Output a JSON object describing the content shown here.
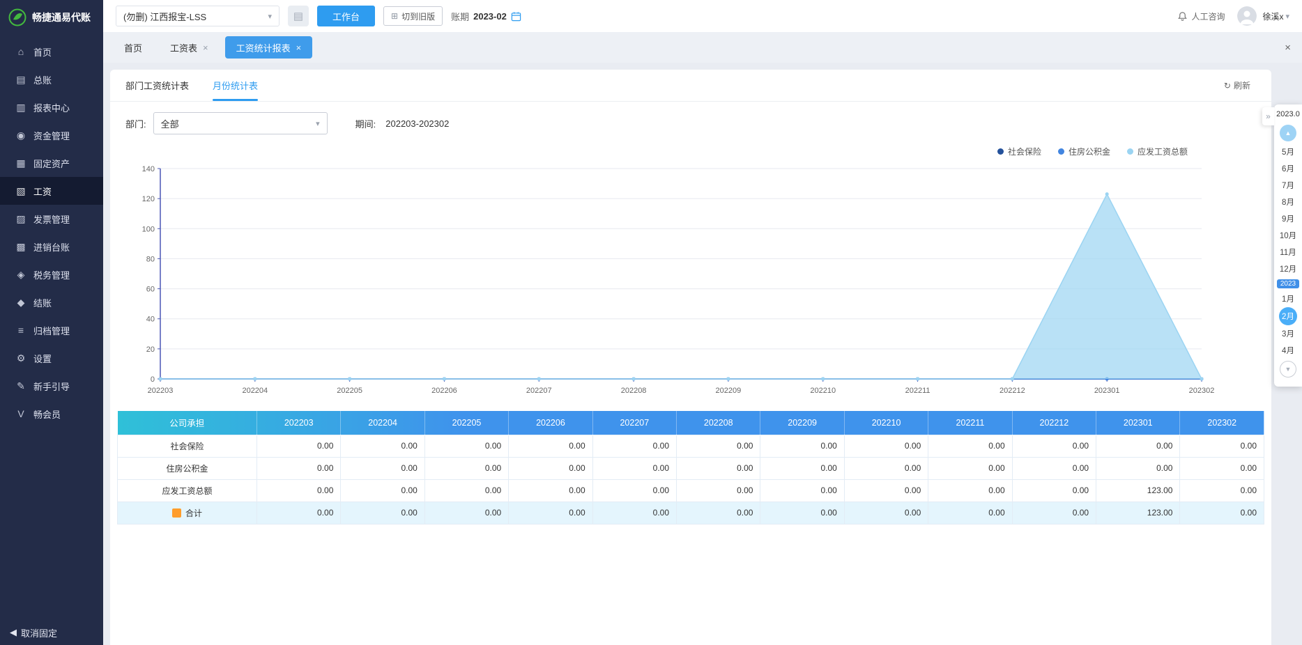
{
  "ui": {
    "chevron_down": "▾",
    "refresh_icon": "↻",
    "close_icon": "×"
  },
  "sidebar": {
    "logo": "畅捷通易代账",
    "pin_icon": "◀",
    "pin_label": "取消固定",
    "items": [
      {
        "id": "home",
        "label": "首页",
        "icon": "⌂",
        "active": false
      },
      {
        "id": "general-ledger",
        "label": "总账",
        "icon": "▤",
        "active": false
      },
      {
        "id": "report-center",
        "label": "报表中心",
        "icon": "▥",
        "active": false
      },
      {
        "id": "fund-management",
        "label": "资金管理",
        "icon": "◉",
        "active": false
      },
      {
        "id": "fixed-assets",
        "label": "固定资产",
        "icon": "▦",
        "active": false
      },
      {
        "id": "salary",
        "label": "工资",
        "icon": "▧",
        "active": true
      },
      {
        "id": "invoice-management",
        "label": "发票管理",
        "icon": "▨",
        "active": false
      },
      {
        "id": "purchase-sale-ledger",
        "label": "进销台账",
        "icon": "▩",
        "active": false
      },
      {
        "id": "tax-management",
        "label": "税务管理",
        "icon": "◈",
        "active": false
      },
      {
        "id": "closing",
        "label": "结账",
        "icon": "◆",
        "active": false
      },
      {
        "id": "archive-management",
        "label": "归档管理",
        "icon": "≡",
        "active": false
      },
      {
        "id": "settings",
        "label": "设置",
        "icon": "⚙",
        "active": false
      },
      {
        "id": "beginner-guide",
        "label": "新手引导",
        "icon": "✎",
        "active": false
      },
      {
        "id": "member",
        "label": "畅会员",
        "icon": "V",
        "active": false
      }
    ]
  },
  "topbar": {
    "company_select": "(勿删) 江西报宝-LSS",
    "memo_icon": "▤",
    "workbench_button": "工作台",
    "switch_old_icon": "⊞",
    "switch_old_button": "切到旧版",
    "period_label": "账期",
    "period_value": "2023-02",
    "consult_label": "人工咨询",
    "username": "徐溪x"
  },
  "tabbar": {
    "close_all": "×",
    "tabs": [
      {
        "id": "home",
        "label": "首页",
        "closable": false,
        "active": false
      },
      {
        "id": "salary-sheet",
        "label": "工资表",
        "closable": true,
        "active": false
      },
      {
        "id": "salary-stats-report",
        "label": "工资统计报表",
        "closable": true,
        "active": true
      }
    ]
  },
  "page": {
    "subtabs": [
      {
        "id": "dept-salary-stats",
        "label": "部门工资统计表",
        "active": false
      },
      {
        "id": "monthly-stats",
        "label": "月份统计表",
        "active": true
      }
    ],
    "refresh_label": "刷新",
    "filters": {
      "dept_label": "部门:",
      "dept_value": "全部",
      "period_label": "期间:",
      "period_value": "202203-202302"
    }
  },
  "chart_data": {
    "type": "area",
    "categories": [
      "202203",
      "202204",
      "202205",
      "202206",
      "202207",
      "202208",
      "202209",
      "202210",
      "202211",
      "202212",
      "202301",
      "202302"
    ],
    "series": [
      {
        "name": "社会保险",
        "color": "#24519b",
        "values": [
          0,
          0,
          0,
          0,
          0,
          0,
          0,
          0,
          0,
          0,
          0,
          0
        ]
      },
      {
        "name": "住房公积金",
        "color": "#4285e0",
        "values": [
          0,
          0,
          0,
          0,
          0,
          0,
          0,
          0,
          0,
          0,
          0,
          0
        ]
      },
      {
        "name": "应发工资总额",
        "color": "#9bd4f2",
        "values": [
          0,
          0,
          0,
          0,
          0,
          0,
          0,
          0,
          0,
          0,
          123,
          0
        ]
      }
    ],
    "title": "",
    "xlabel": "",
    "ylabel": "",
    "ylim": [
      0,
      140
    ],
    "yticks": [
      0,
      20,
      40,
      60,
      80,
      100,
      120,
      140
    ],
    "grid": true,
    "legend_position": "top-right"
  },
  "table": {
    "header": [
      "公司承担",
      "202203",
      "202204",
      "202205",
      "202206",
      "202207",
      "202208",
      "202209",
      "202210",
      "202211",
      "202212",
      "202301",
      "202302"
    ],
    "rows": [
      {
        "label": "社会保险",
        "total": false,
        "icon": false,
        "values": [
          "0.00",
          "0.00",
          "0.00",
          "0.00",
          "0.00",
          "0.00",
          "0.00",
          "0.00",
          "0.00",
          "0.00",
          "0.00",
          "0.00"
        ]
      },
      {
        "label": "住房公积金",
        "total": false,
        "icon": false,
        "values": [
          "0.00",
          "0.00",
          "0.00",
          "0.00",
          "0.00",
          "0.00",
          "0.00",
          "0.00",
          "0.00",
          "0.00",
          "0.00",
          "0.00"
        ]
      },
      {
        "label": "应发工资总额",
        "total": false,
        "icon": false,
        "values": [
          "0.00",
          "0.00",
          "0.00",
          "0.00",
          "0.00",
          "0.00",
          "0.00",
          "0.00",
          "0.00",
          "0.00",
          "123.00",
          "0.00"
        ]
      },
      {
        "label": "合计",
        "total": true,
        "icon": true,
        "values": [
          "0.00",
          "0.00",
          "0.00",
          "0.00",
          "0.00",
          "0.00",
          "0.00",
          "0.00",
          "0.00",
          "0.00",
          "123.00",
          "0.00"
        ]
      }
    ]
  },
  "date_panel": {
    "header": "2023.0",
    "collapse_icon": "»",
    "up_icon": "▲",
    "down_icon": "▼",
    "items": [
      {
        "label": "5月",
        "badge": false,
        "active": false
      },
      {
        "label": "6月",
        "badge": false,
        "active": false
      },
      {
        "label": "7月",
        "badge": false,
        "active": false
      },
      {
        "label": "8月",
        "badge": false,
        "active": false
      },
      {
        "label": "9月",
        "badge": false,
        "active": false
      },
      {
        "label": "10月",
        "badge": false,
        "active": false
      },
      {
        "label": "11月",
        "badge": false,
        "active": false
      },
      {
        "label": "12月",
        "badge": false,
        "active": false
      },
      {
        "label": "2023",
        "badge": true,
        "active": false
      },
      {
        "label": "1月",
        "badge": false,
        "active": false
      },
      {
        "label": "2月",
        "badge": false,
        "active": true
      },
      {
        "label": "3月",
        "badge": false,
        "active": false
      },
      {
        "label": "4月",
        "badge": false,
        "active": false
      }
    ]
  },
  "colors": {
    "primary": "#2e9cf0",
    "sidebar_bg": "#232c48",
    "axis": "#4a57b5",
    "table_header_gradient": [
      "#2fc0d8",
      "#3f93ec"
    ],
    "total_row_bg": "#e4f5fd"
  }
}
